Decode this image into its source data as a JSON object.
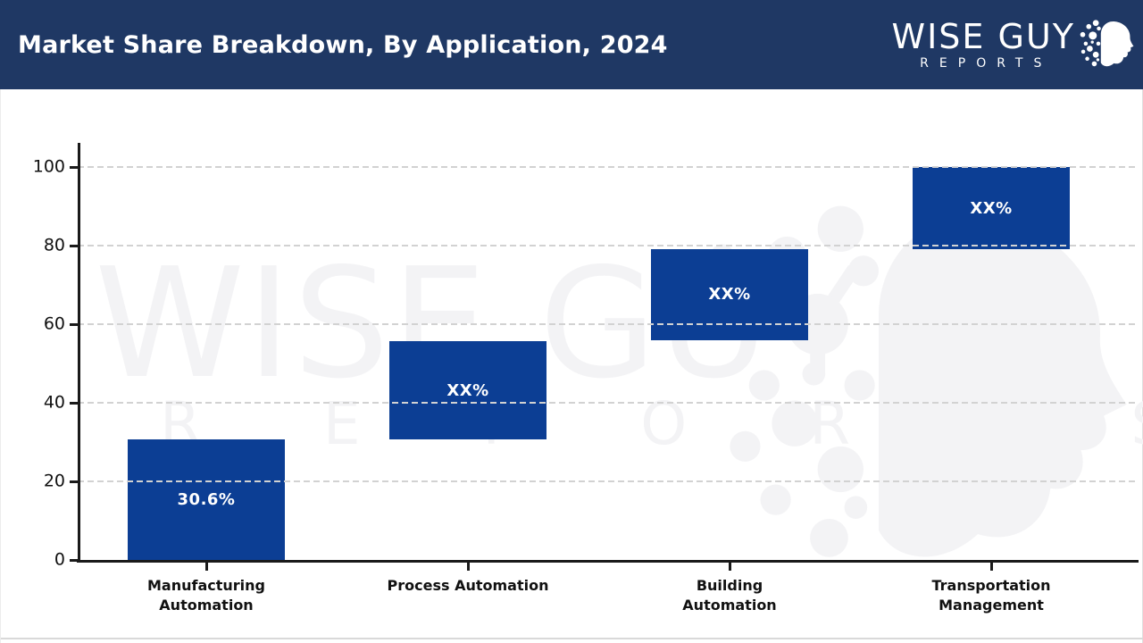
{
  "header": {
    "title": "Market Share Breakdown, By Application, 2024",
    "logo": {
      "name": "WISE GUY",
      "sub": "REPORTS"
    }
  },
  "watermark": {
    "name": "WISE GUY",
    "sub": "R E P O R T S"
  },
  "colors": {
    "header_bg": "#1f3864",
    "bar": "#0c3e94",
    "axis": "#1a1a1a",
    "gridline": "#d2d2d2",
    "watermark": "#f3f3f5"
  },
  "chart_data": {
    "type": "bar",
    "subtype": "waterfall",
    "title": "Market Share Breakdown, By Application, 2024",
    "ylim": [
      0,
      100
    ],
    "y_ticks": [
      0,
      20,
      40,
      60,
      80,
      100
    ],
    "grid": "horizontal-dashed",
    "legend": "none",
    "categories": [
      "Manufacturing Automation",
      "Process Automation",
      "Building Automation",
      "Transportation Management"
    ],
    "segments": [
      {
        "category_lines": [
          "Manufacturing",
          "Automation"
        ],
        "start": 0,
        "end": 30.6,
        "label": "30.6%"
      },
      {
        "category_lines": [
          "Process Automation"
        ],
        "start": 30.6,
        "end": 55.6,
        "label": "XX%"
      },
      {
        "category_lines": [
          "Building",
          "Automation"
        ],
        "start": 56,
        "end": 79,
        "label": "XX%"
      },
      {
        "category_lines": [
          "Transportation",
          "Management"
        ],
        "start": 79,
        "end": 100,
        "label": "XX%"
      }
    ]
  }
}
